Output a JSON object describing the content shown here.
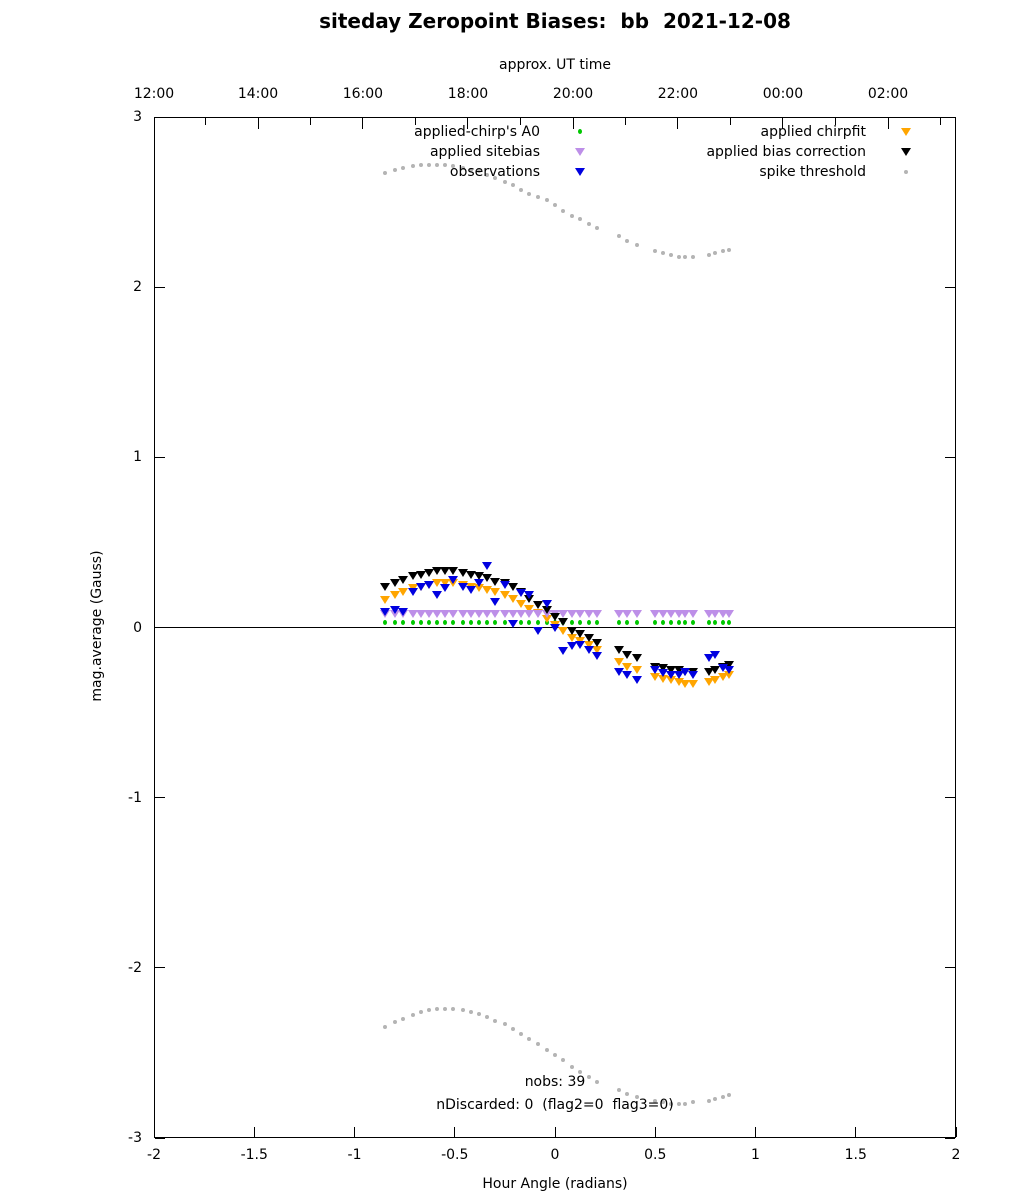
{
  "title": "siteday Zeropoint Biases:  bb  2021-12-08",
  "annotations": {
    "nobs": "nobs: 39",
    "ndiscarded": "nDiscarded: 0  (flag2=0  flag3=0)"
  },
  "axes": {
    "x": {
      "label": "Hour Angle (radians)",
      "min": -2,
      "max": 2,
      "ticks": [
        {
          "v": -2,
          "label": "-2"
        },
        {
          "v": -1.5,
          "label": "-1.5"
        },
        {
          "v": -1,
          "label": "-1"
        },
        {
          "v": -0.5,
          "label": "-0.5"
        },
        {
          "v": 0,
          "label": "0"
        },
        {
          "v": 0.5,
          "label": "0.5"
        },
        {
          "v": 1,
          "label": "1"
        },
        {
          "v": 1.5,
          "label": "1.5"
        },
        {
          "v": 2,
          "label": "2"
        }
      ]
    },
    "x2": {
      "label": "approx. UT time",
      "ticks": [
        {
          "ha": -2.0,
          "label": "12:00"
        },
        {
          "ha": -1.481,
          "label": "14:00"
        },
        {
          "ha": -0.958,
          "label": "16:00"
        },
        {
          "ha": -0.434,
          "label": "18:00"
        },
        {
          "ha": 0.09,
          "label": "20:00"
        },
        {
          "ha": 0.613,
          "label": "22:00"
        },
        {
          "ha": 1.137,
          "label": "00:00"
        },
        {
          "ha": 1.661,
          "label": "02:00"
        }
      ],
      "minor": [
        -1.743,
        -1.22,
        -0.696,
        -0.172,
        0.352,
        0.875,
        1.399,
        1.922
      ]
    },
    "y": {
      "label": "mag.average (Gauss)",
      "min": -3,
      "max": 3,
      "ticks": [
        {
          "v": 3,
          "label": "3"
        },
        {
          "v": 2,
          "label": "2"
        },
        {
          "v": 1,
          "label": "1"
        },
        {
          "v": 0,
          "label": "0"
        },
        {
          "v": -1,
          "label": "-1"
        },
        {
          "v": -2,
          "label": "-2"
        },
        {
          "v": -3,
          "label": "-3"
        }
      ]
    }
  },
  "legend": {
    "left": [
      {
        "label": "applied-chirp's A0",
        "series": "a0"
      },
      {
        "label": "applied sitebias",
        "series": "sitebias"
      },
      {
        "label": "observations",
        "series": "observations"
      }
    ],
    "right": [
      {
        "label": "applied chirpfit",
        "series": "chirpfit"
      },
      {
        "label": "applied bias correction",
        "series": "bias_correction"
      },
      {
        "label": "spike threshold",
        "series": "spike_threshold"
      }
    ]
  },
  "chart_data": {
    "type": "scatter",
    "title": "siteday Zeropoint Biases:  bb  2021-12-08",
    "xlabel": "Hour Angle (radians)",
    "x2label": "approx. UT time",
    "ylabel": "mag.average (Gauss)",
    "xlim": [
      -2,
      2
    ],
    "ylim": [
      -3,
      3
    ],
    "grid": false,
    "legend_position": "top-inside-two-columns",
    "x": [
      -0.85,
      -0.8,
      -0.76,
      -0.71,
      -0.67,
      -0.63,
      -0.59,
      -0.55,
      -0.51,
      -0.46,
      -0.42,
      -0.38,
      -0.34,
      -0.3,
      -0.25,
      -0.21,
      -0.17,
      -0.13,
      -0.085,
      -0.04,
      0.0,
      0.04,
      0.085,
      0.125,
      0.17,
      0.21,
      0.32,
      0.36,
      0.41,
      0.5,
      0.54,
      0.58,
      0.62,
      0.65,
      0.69,
      0.77,
      0.8,
      0.84,
      0.87
    ],
    "series": [
      {
        "key": "a0",
        "name": "applied-chirp's A0",
        "marker": "dot",
        "color": "#00c800",
        "values": [
          0.025,
          0.025,
          0.025,
          0.025,
          0.025,
          0.025,
          0.025,
          0.025,
          0.025,
          0.025,
          0.025,
          0.025,
          0.025,
          0.025,
          0.025,
          0.025,
          0.025,
          0.025,
          0.025,
          0.025,
          0.025,
          0.025,
          0.025,
          0.025,
          0.025,
          0.025,
          0.025,
          0.025,
          0.025,
          0.025,
          0.025,
          0.025,
          0.025,
          0.025,
          0.025,
          0.025,
          0.025,
          0.025,
          0.025
        ]
      },
      {
        "key": "chirpfit",
        "name": "applied chirpfit",
        "marker": "triangle-down",
        "color": "#ffa500",
        "values": [
          0.16,
          0.19,
          0.21,
          0.23,
          0.24,
          0.25,
          0.26,
          0.26,
          0.26,
          0.25,
          0.24,
          0.23,
          0.22,
          0.21,
          0.19,
          0.17,
          0.14,
          0.11,
          0.085,
          0.05,
          0.015,
          -0.02,
          -0.06,
          -0.08,
          -0.1,
          -0.13,
          -0.2,
          -0.23,
          -0.25,
          -0.29,
          -0.3,
          -0.31,
          -0.32,
          -0.33,
          -0.33,
          -0.32,
          -0.31,
          -0.29,
          -0.28
        ]
      },
      {
        "key": "sitebias",
        "name": "applied sitebias",
        "marker": "triangle-down",
        "color": "#bd8fe8",
        "values": [
          0.08,
          0.08,
          0.08,
          0.08,
          0.08,
          0.08,
          0.08,
          0.08,
          0.08,
          0.08,
          0.08,
          0.08,
          0.08,
          0.08,
          0.08,
          0.08,
          0.08,
          0.08,
          0.08,
          0.08,
          0.08,
          0.08,
          0.08,
          0.08,
          0.08,
          0.08,
          0.08,
          0.08,
          0.08,
          0.08,
          0.08,
          0.08,
          0.08,
          0.08,
          0.08,
          0.08,
          0.08,
          0.08,
          0.08
        ]
      },
      {
        "key": "bias_correction",
        "name": "applied bias correction",
        "marker": "triangle-down",
        "color": "#000000",
        "values": [
          0.24,
          0.26,
          0.28,
          0.3,
          0.31,
          0.32,
          0.33,
          0.33,
          0.33,
          0.32,
          0.31,
          0.3,
          0.29,
          0.27,
          0.26,
          0.24,
          0.21,
          0.17,
          0.13,
          0.1,
          0.06,
          0.03,
          -0.02,
          -0.04,
          -0.06,
          -0.09,
          -0.13,
          -0.16,
          -0.18,
          -0.23,
          -0.24,
          -0.25,
          -0.25,
          -0.26,
          -0.26,
          -0.26,
          -0.25,
          -0.23,
          -0.22
        ]
      },
      {
        "key": "observations",
        "name": "observations",
        "marker": "triangle-down",
        "color": "#0000e0",
        "values": [
          0.09,
          0.1,
          0.09,
          0.21,
          0.24,
          0.25,
          0.19,
          0.23,
          0.28,
          0.24,
          0.22,
          0.26,
          0.36,
          0.15,
          0.25,
          0.02,
          0.2,
          0.19,
          -0.02,
          0.14,
          0.0,
          -0.14,
          -0.11,
          -0.1,
          -0.13,
          -0.17,
          -0.26,
          -0.28,
          -0.31,
          -0.25,
          -0.27,
          -0.28,
          -0.28,
          -0.26,
          -0.28,
          -0.18,
          -0.16,
          -0.24,
          -0.25
        ]
      },
      {
        "key": "spike_threshold",
        "name": "spike threshold",
        "marker": "dot-small",
        "color": "#b4b4b4",
        "values_upper": [
          2.67,
          2.69,
          2.7,
          2.71,
          2.72,
          2.72,
          2.72,
          2.72,
          2.71,
          2.7,
          2.69,
          2.68,
          2.66,
          2.64,
          2.62,
          2.6,
          2.57,
          2.55,
          2.53,
          2.51,
          2.48,
          2.45,
          2.42,
          2.4,
          2.37,
          2.35,
          2.3,
          2.27,
          2.25,
          2.21,
          2.2,
          2.19,
          2.18,
          2.18,
          2.18,
          2.19,
          2.2,
          2.21,
          2.22
        ],
        "values_lower": [
          -2.35,
          -2.32,
          -2.3,
          -2.28,
          -2.26,
          -2.25,
          -2.24,
          -2.24,
          -2.24,
          -2.25,
          -2.26,
          -2.27,
          -2.29,
          -2.31,
          -2.33,
          -2.36,
          -2.39,
          -2.42,
          -2.45,
          -2.48,
          -2.51,
          -2.54,
          -2.58,
          -2.61,
          -2.64,
          -2.67,
          -2.72,
          -2.74,
          -2.76,
          -2.78,
          -2.79,
          -2.8,
          -2.8,
          -2.8,
          -2.79,
          -2.78,
          -2.77,
          -2.76,
          -2.75
        ]
      }
    ]
  }
}
